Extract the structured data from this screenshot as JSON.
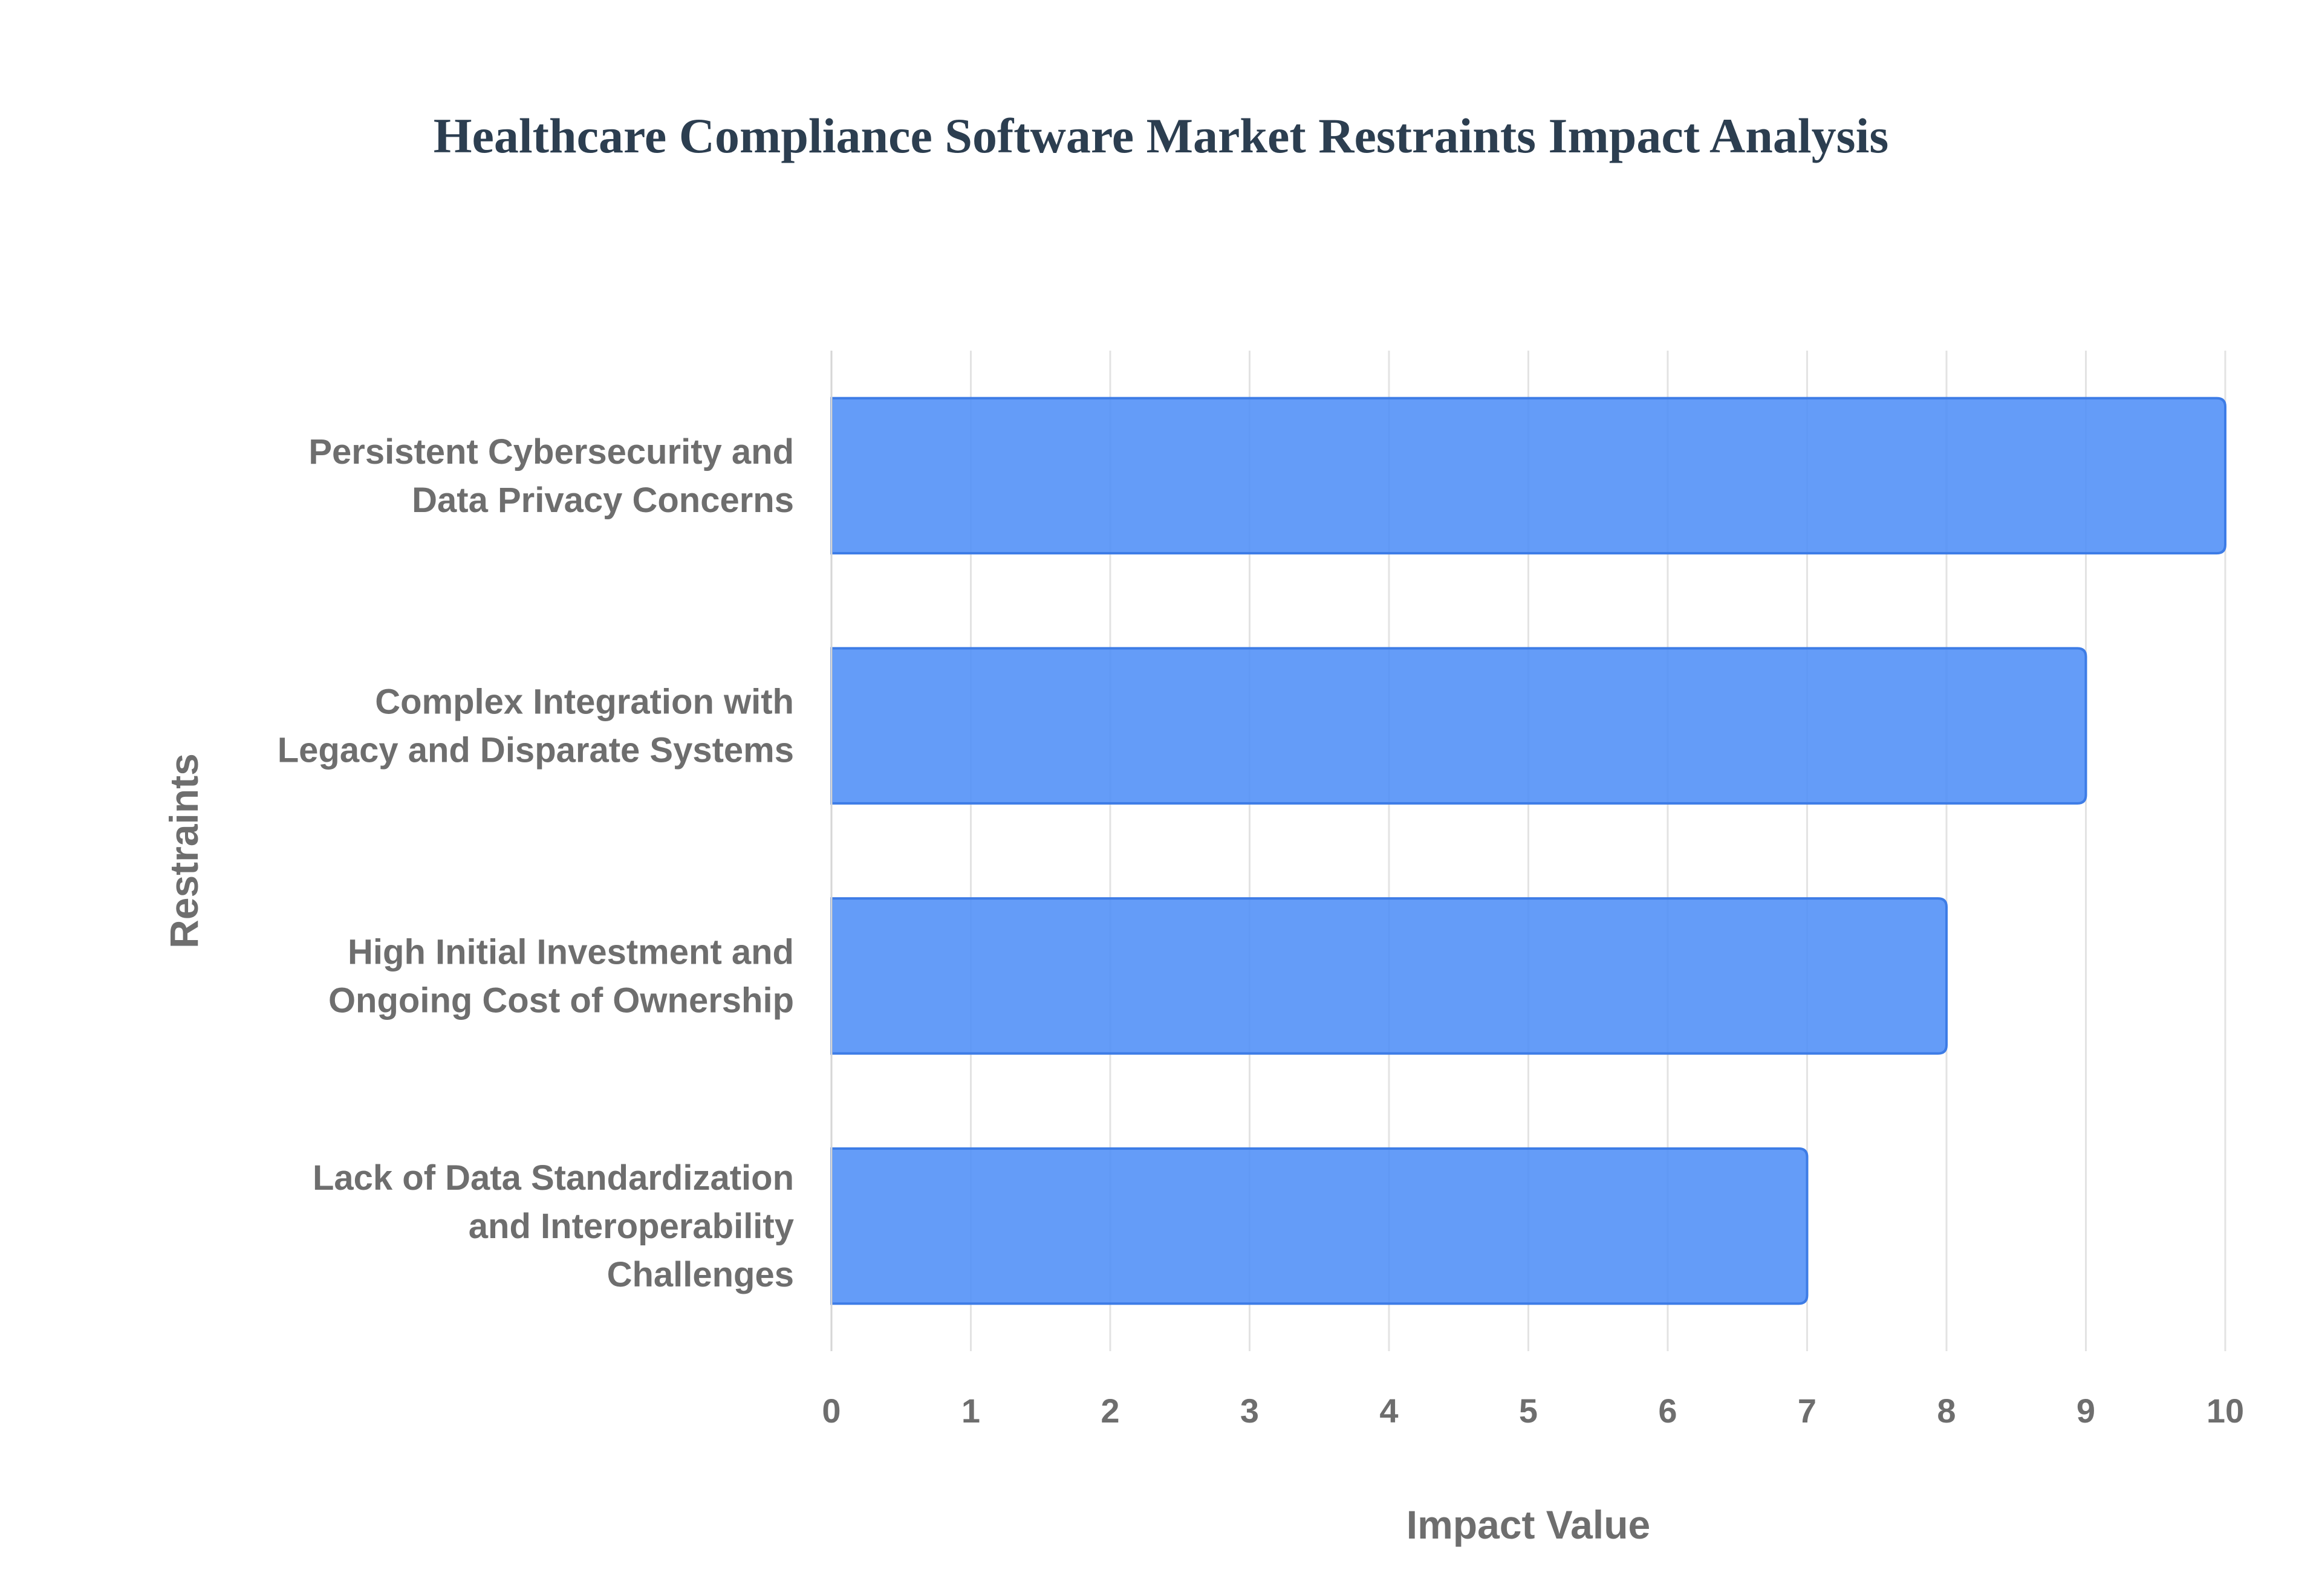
{
  "chart_data": {
    "type": "bar",
    "orientation": "horizontal",
    "title": "Healthcare Compliance Software Market Restraints Impact Analysis",
    "xlabel": "Impact Value",
    "ylabel": "Restraints",
    "xlim": [
      0,
      10
    ],
    "xticks": [
      "0",
      "1",
      "2",
      "3",
      "4",
      "5",
      "6",
      "7",
      "8",
      "9",
      "10"
    ],
    "grid": true,
    "bar_color": "#4f8ef7",
    "categories": [
      [
        "Persistent Cybersecurity and",
        "Data Privacy Concerns"
      ],
      [
        "Complex Integration with",
        "Legacy and Disparate Systems"
      ],
      [
        "High Initial Investment and",
        "Ongoing Cost of Ownership"
      ],
      [
        "Lack of Data Standardization",
        "and Interoperability",
        "Challenges"
      ]
    ],
    "values": [
      10,
      9,
      8,
      7
    ]
  }
}
